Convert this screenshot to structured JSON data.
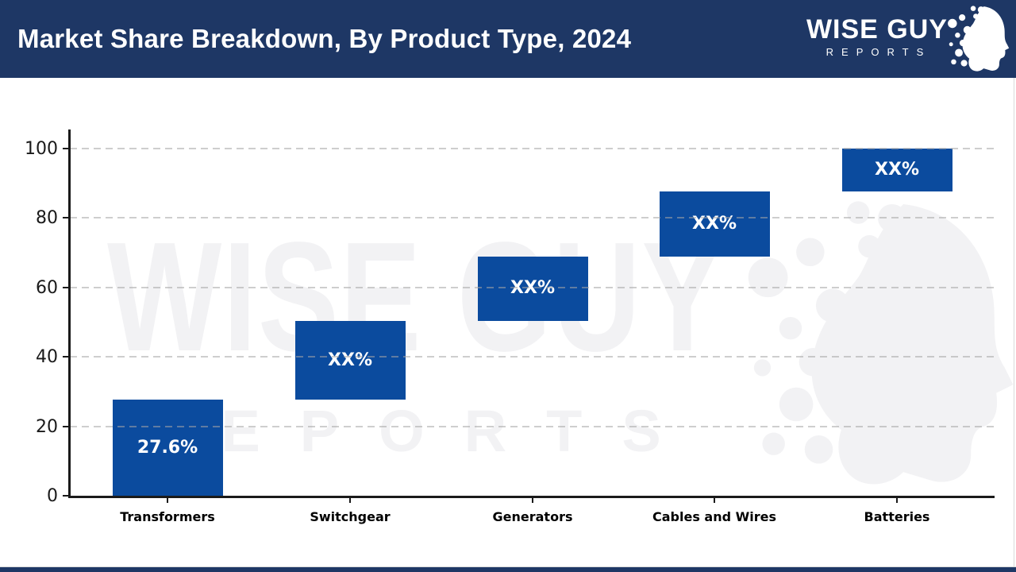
{
  "header": {
    "title": "Market Share Breakdown, By Product Type, 2024",
    "logo": {
      "line1": "WISE GUY",
      "line2": "REPORTS"
    }
  },
  "watermark": {
    "line1": "WISE GUY",
    "line2": "REPORTS"
  },
  "colors": {
    "header_bg": "#1e3765",
    "bar": "#0b4b9e",
    "bar_label_text": "#ffffff",
    "axis": "#1a1a1a",
    "gridline": "#d8d8d8",
    "watermark": "#f2f2f4"
  },
  "chart_data": {
    "type": "bar",
    "subtype": "waterfall",
    "title": "Market Share Breakdown, By Product Type, 2024",
    "categories": [
      "Transformers",
      "Switchgear",
      "Generators",
      "Cables and Wires",
      "Batteries"
    ],
    "segments": [
      {
        "category": "Transformers",
        "start": 0,
        "end": 27.6,
        "label": "27.6%"
      },
      {
        "category": "Switchgear",
        "start": 27.6,
        "end": 50.4,
        "label": "XX%"
      },
      {
        "category": "Generators",
        "start": 50.4,
        "end": 68.9,
        "label": "XX%"
      },
      {
        "category": "Cables and Wires",
        "start": 68.9,
        "end": 87.7,
        "label": "XX%"
      },
      {
        "category": "Batteries",
        "start": 87.7,
        "end": 100,
        "label": "XX%"
      }
    ],
    "yticks": [
      0,
      20,
      40,
      60,
      80,
      100
    ],
    "ylim": [
      0,
      100
    ],
    "xlabel": "",
    "ylabel": "",
    "grid": "horizontal-dashed",
    "grid_above_bars": true,
    "legend": "none"
  }
}
